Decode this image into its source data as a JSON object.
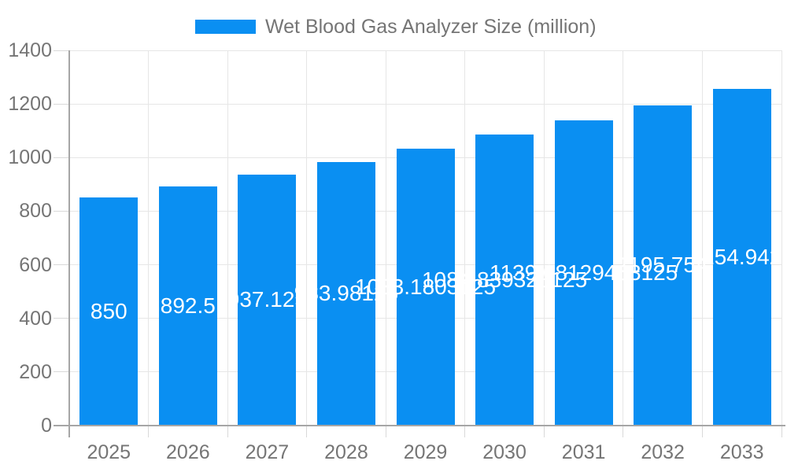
{
  "colors": {
    "bar": "#0a8ff2",
    "bar_label_text": "#ffffff",
    "axis_text": "#757575",
    "gridline": "#e6e6e6",
    "axis_line": "#a6a6a6",
    "tick": "#d9d9d9",
    "background": "#ffffff"
  },
  "chart_data": {
    "type": "bar",
    "title": "",
    "xlabel": "",
    "ylabel": "",
    "categories": [
      "2025",
      "2026",
      "2027",
      "2028",
      "2029",
      "2030",
      "2031",
      "2032",
      "2033"
    ],
    "series": [
      {
        "name": "Wet Blood Gas Analyzer Size (million)",
        "values": [
          850,
          892.5,
          937.125,
          983.98125,
          1033.1803125,
          1084.839328125,
          1139.08129453125,
          1195.754,
          1254.9423
        ]
      }
    ],
    "bar_value_labels": [
      "850",
      "892.5",
      "937.125",
      "983.98125",
      "1033.1803125",
      "1084.839328125",
      "1139.08129453125",
      "1195.754",
      "1254.9423"
    ],
    "ylim": [
      0,
      1400
    ],
    "yticks": [
      0,
      200,
      400,
      600,
      800,
      1000,
      1200,
      1400
    ],
    "grid": true,
    "legend_position": "top",
    "value_labels_inside_bars": true
  }
}
